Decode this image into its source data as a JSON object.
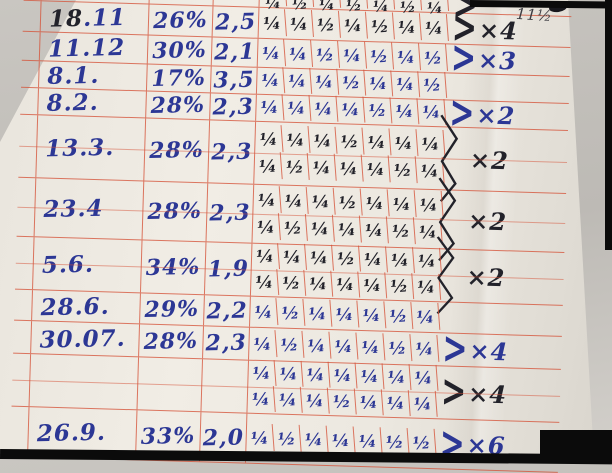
{
  "photo": {
    "pencil_note": "11½",
    "paper_color": "#ece8e0",
    "grid_color": "#d55238",
    "blue_ink": "#2c3795",
    "black_ink": "#22222a"
  },
  "table": {
    "partial_top_row": {
      "fractions": [
        "¼",
        "½",
        "¼",
        "½",
        "¼",
        "½",
        "¼"
      ],
      "note": ">",
      "ink": "black"
    },
    "rows": [
      {
        "date_black": "18",
        "date": ".11",
        "percent": "26%",
        "value": "2,5",
        "ink": "blue",
        "fracs_ink": "black",
        "fraction_lines": [
          [
            "¼",
            "¼",
            "½",
            "¼",
            "½",
            "¼",
            "¼"
          ]
        ],
        "note": ">×4",
        "note_ink": "black",
        "brace": false
      },
      {
        "date_black": "",
        "date": "11.12",
        "percent": "30%",
        "value": "2,1",
        "ink": "blue",
        "fracs_ink": "blue",
        "fraction_lines": [
          [
            "¼",
            "¼",
            "½",
            "¼",
            "½",
            "¼",
            "½"
          ]
        ],
        "note": ">×3",
        "note_ink": "blue",
        "brace": false
      },
      {
        "date_black": "",
        "date": "8.1.",
        "percent": "17%",
        "value": "3,5",
        "ink": "blue",
        "fracs_ink": "blue",
        "fraction_lines": [
          [
            "¼",
            "¼",
            "¼",
            "½",
            "¼",
            "¼",
            "½"
          ]
        ],
        "note": "",
        "note_ink": "blue",
        "brace": false
      },
      {
        "date_black": "",
        "date": "8.2.",
        "percent": "28%",
        "value": "2,3",
        "ink": "blue",
        "fracs_ink": "blue",
        "fraction_lines": [
          [
            "¼",
            "¼",
            "¼",
            "¼",
            "½",
            "¼",
            "¼"
          ]
        ],
        "note": ">×2",
        "note_ink": "blue",
        "brace": false
      },
      {
        "date_black": "",
        "date": "13.3.",
        "percent": "28%",
        "value": "2,3",
        "ink": "blue",
        "fracs_ink": "black",
        "fraction_lines": [
          [
            "¼",
            "¼",
            "¼",
            "½",
            "¼",
            "¼",
            "¼"
          ],
          [
            "¼",
            "½",
            "¼",
            "¼",
            "¼",
            "½",
            "¼"
          ]
        ],
        "note": "×2",
        "note_ink": "black",
        "brace": true
      },
      {
        "date_black": "",
        "date": "23.4",
        "percent": "28%",
        "value": "2,3",
        "ink": "blue",
        "fracs_ink": "black",
        "fraction_lines": [
          [
            "¼",
            "¼",
            "¼",
            "½",
            "¼",
            "¼",
            "¼"
          ],
          [
            "¼",
            "½",
            "¼",
            "¼",
            "¼",
            "½",
            "¼"
          ]
        ],
        "note": "×2",
        "note_ink": "black",
        "brace": true
      },
      {
        "date_black": "",
        "date": "5.6.",
        "percent": "34%",
        "value": "1,9",
        "ink": "blue",
        "fracs_ink": "black",
        "fraction_lines": [
          [
            "¼",
            "¼",
            "¼",
            "½",
            "¼",
            "¼",
            "¼"
          ],
          [
            "¼",
            "½",
            "¼",
            "¼",
            "¼",
            "½",
            "¼"
          ]
        ],
        "note": "×2",
        "note_ink": "black",
        "brace": true
      },
      {
        "date_black": "",
        "date": "28.6.",
        "percent": "29%",
        "value": "2,2",
        "ink": "blue",
        "fracs_ink": "blue",
        "fraction_lines": [
          [
            "¼",
            "½",
            "¼",
            "¼",
            "¼",
            "½",
            "¼"
          ]
        ],
        "note": "",
        "note_ink": "blue",
        "brace": false
      },
      {
        "date_black": "",
        "date": "30.07.",
        "percent": "28%",
        "value": "2,3",
        "ink": "blue",
        "fracs_ink": "blue",
        "fraction_lines": [
          [
            "¼",
            "½",
            "¼",
            "¼",
            "¼",
            "½",
            "¼"
          ]
        ],
        "note": ">×4",
        "note_ink": "blue",
        "brace": false
      },
      {
        "date_black": "",
        "date": "",
        "percent": "",
        "value": "",
        "ink": "blue",
        "fracs_ink": "blue",
        "fraction_lines": [
          [
            "¼",
            "¼",
            "¼",
            "¼",
            "¼",
            "¼",
            "¼"
          ],
          [
            "¼",
            "¼",
            "¼",
            "½",
            "¼",
            "¼",
            "¼"
          ]
        ],
        "note": ">×4",
        "note_ink": "black",
        "brace": false
      },
      {
        "date_black": "",
        "date": "26.9.",
        "percent": "33%",
        "value": "2,0",
        "ink": "blue",
        "fracs_ink": "blue",
        "fraction_lines": [
          [
            "¼",
            "½",
            "¼",
            "¼",
            "¼",
            "½",
            "½"
          ]
        ],
        "note": ">×6",
        "note_ink": "blue",
        "brace": false
      }
    ]
  }
}
